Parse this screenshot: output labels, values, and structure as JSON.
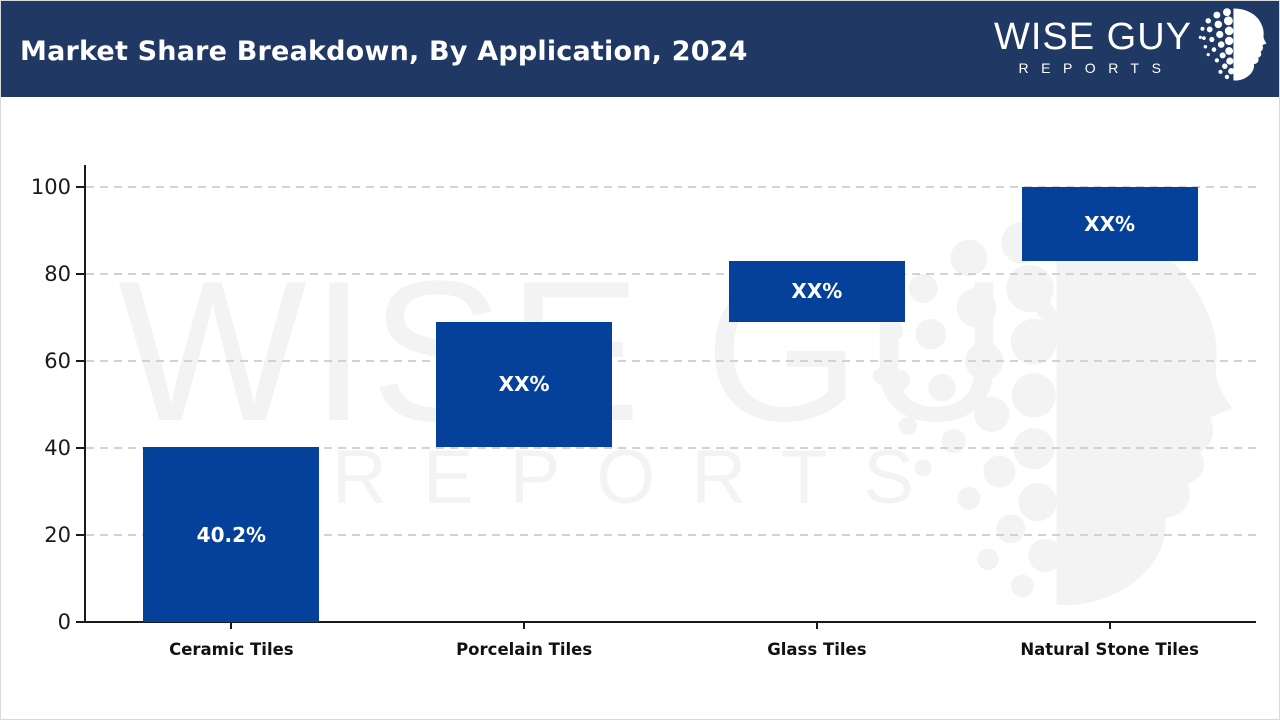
{
  "header": {
    "title": "Market Share Breakdown, By Application, 2024",
    "logo": {
      "line1": "WISE GUY",
      "line2": "REPORTS"
    }
  },
  "watermark": {
    "line1": "WISE GUY",
    "line2": "REPORTS"
  },
  "colors": {
    "header_bg": "#1F3864",
    "bar": "#05419B",
    "grid": "#D2D2D2",
    "axis": "#1A1A1A",
    "watermark": "#F3F3F3",
    "border": "#D9D9D9",
    "bar_label_text": "#FFFFFF"
  },
  "chart_data": {
    "type": "bar",
    "subtype": "floating-waterfall",
    "title": "Market Share Breakdown, By Application, 2024",
    "categories": [
      "Ceramic Tiles",
      "Porcelain Tiles",
      "Glass Tiles",
      "Natural Stone Tiles"
    ],
    "series": [
      {
        "name": "Market Share (%)",
        "ranges": [
          [
            0,
            40.2
          ],
          [
            40.2,
            69
          ],
          [
            69,
            83
          ],
          [
            83,
            100
          ]
        ]
      }
    ],
    "bar_labels": [
      "40.2%",
      "XX%",
      "XX%",
      "XX%"
    ],
    "ylim": [
      0,
      100
    ],
    "yticks": [
      0,
      20,
      40,
      60,
      80,
      100
    ],
    "xlabel": "",
    "ylabel": "",
    "grid": "horizontal-dashed",
    "legend": "none"
  }
}
